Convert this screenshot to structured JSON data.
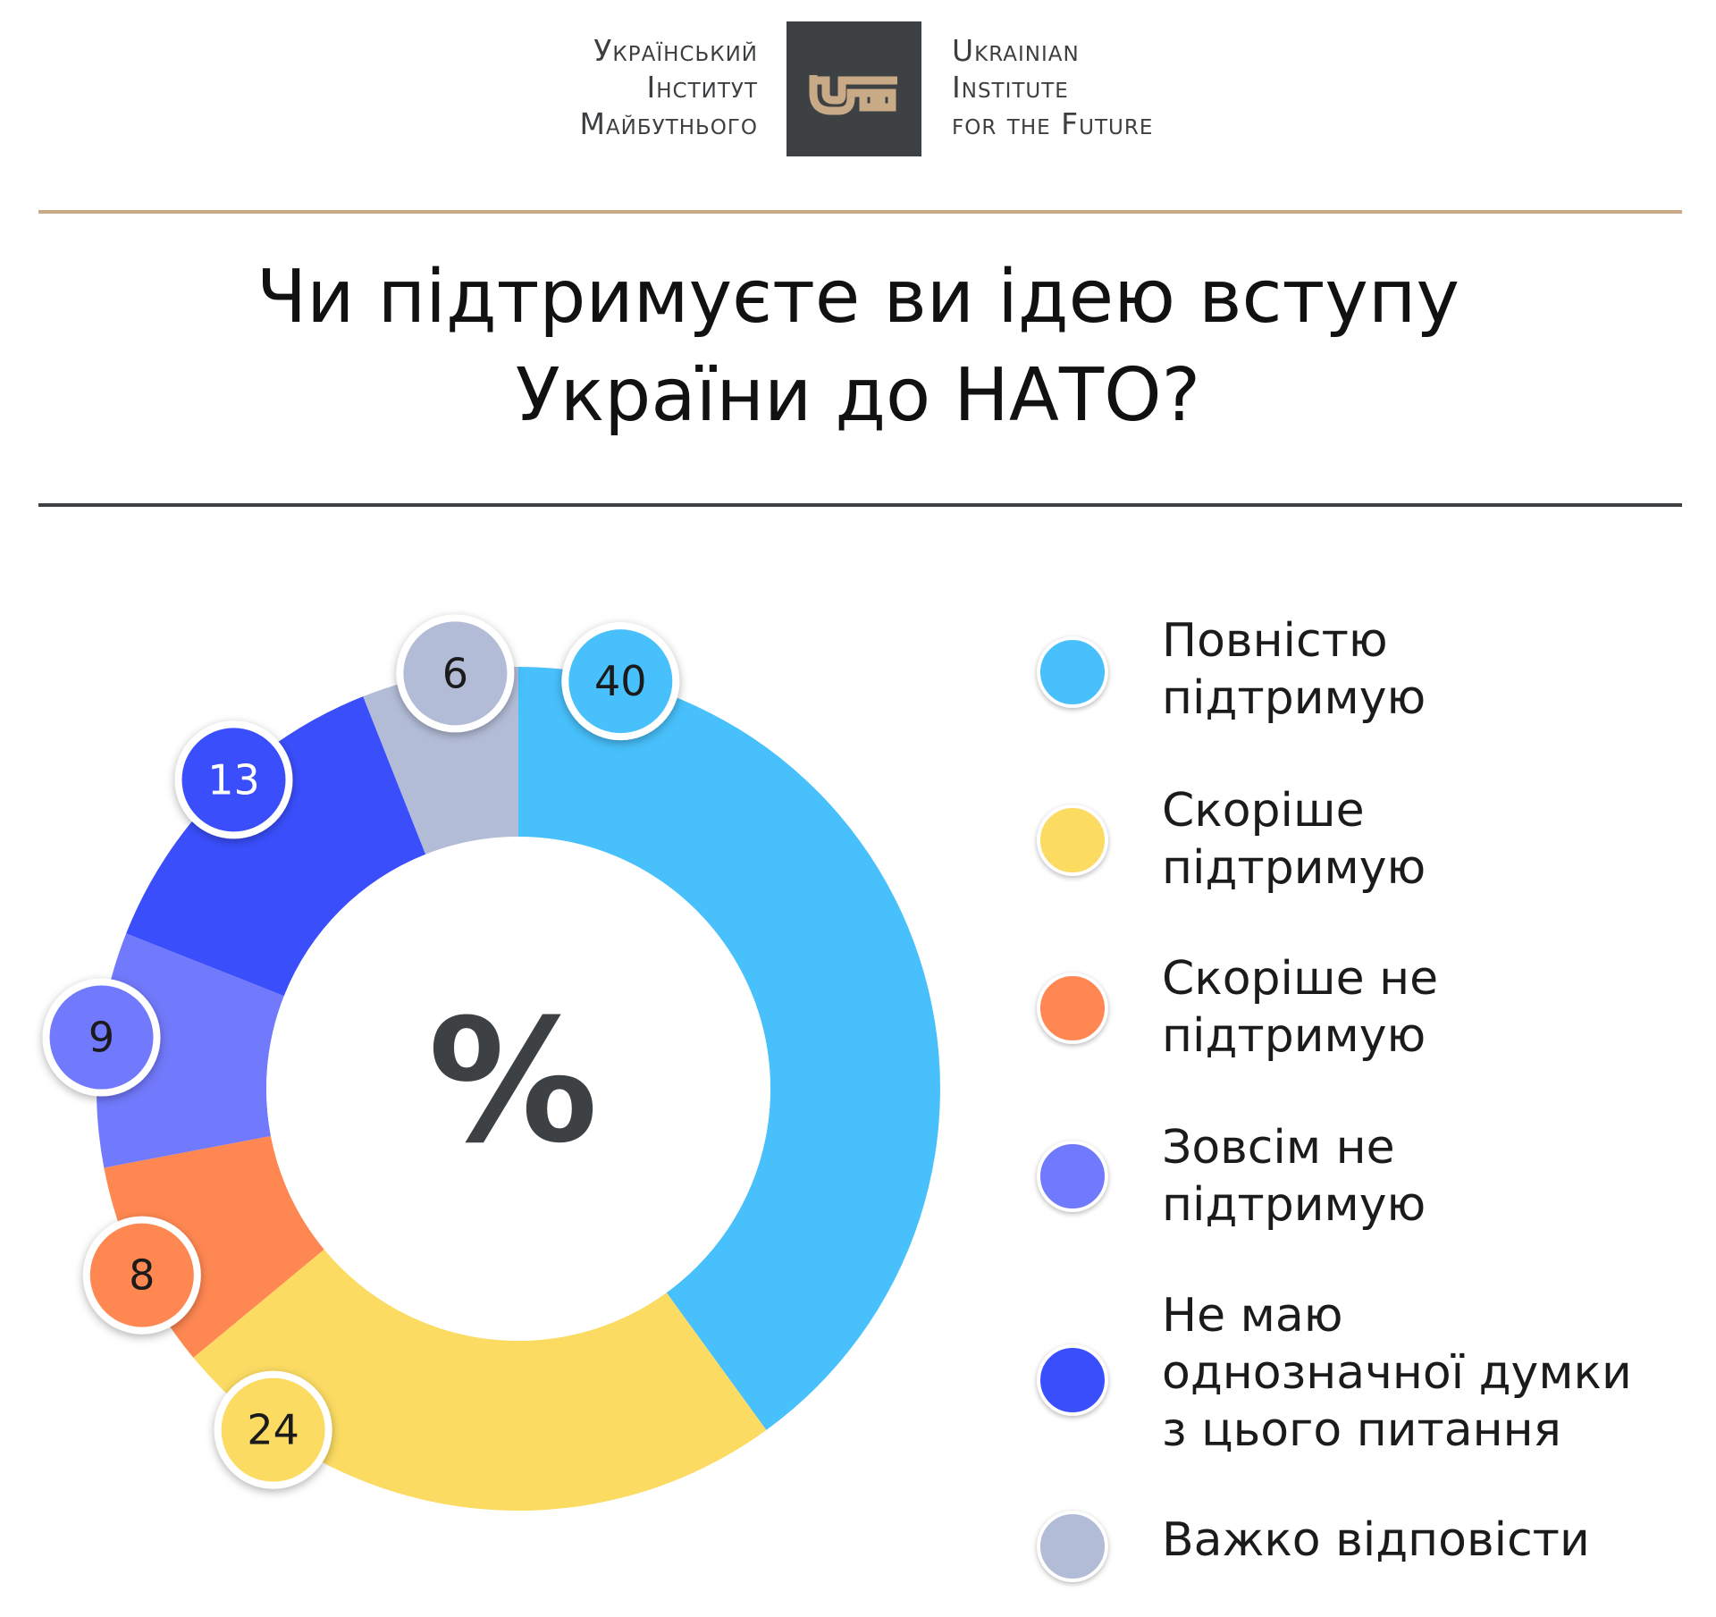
{
  "header": {
    "org_ua_lines": [
      "Український",
      "Інститут",
      "Майбутнього"
    ],
    "org_en_lines": [
      "Ukrainian",
      "Institute",
      "for the Future"
    ],
    "logo_icon": "key-icon",
    "logo_box_color": "#3e4144",
    "logo_key_color": "#c8aa86"
  },
  "title_lines": [
    "Чи підтримуєте ви ідею вступу",
    "України до НАТО?"
  ],
  "chart_data": {
    "type": "pie",
    "variant": "donut",
    "title": "Чи підтримуєте ви ідею вступу України до НАТО?",
    "unit": "%",
    "center_label": "%",
    "categories": [
      "Повністю підтримую",
      "Скоріше підтримую",
      "Скоріше не підтримую",
      "Зовсім не підтримую",
      "Не маю однозначної думки з цього питання",
      "Важко відповісти"
    ],
    "values": [
      40,
      24,
      8,
      9,
      13,
      6
    ],
    "colors": [
      "#47c0fb",
      "#fbdb62",
      "#ff8752",
      "#7179fc",
      "#3a4efc",
      "#b3bcd7"
    ],
    "start": "top (12 o'clock)",
    "direction": "clockwise",
    "legend_position": "right"
  },
  "legend_items": [
    {
      "label": "Повністю\nпідтримую",
      "color": "#47c0fb"
    },
    {
      "label": "Скоріше\nпідтримую",
      "color": "#fbdb62"
    },
    {
      "label": "Скоріше не\nпідтримую",
      "color": "#ff8752"
    },
    {
      "label": "Зовсім не\nпідтримую",
      "color": "#7179fc"
    },
    {
      "label": "Не маю\nоднозначної думки\nз цього питання",
      "color": "#3a4efc"
    },
    {
      "label": "Важко відповісти",
      "color": "#b3bcd7"
    }
  ]
}
